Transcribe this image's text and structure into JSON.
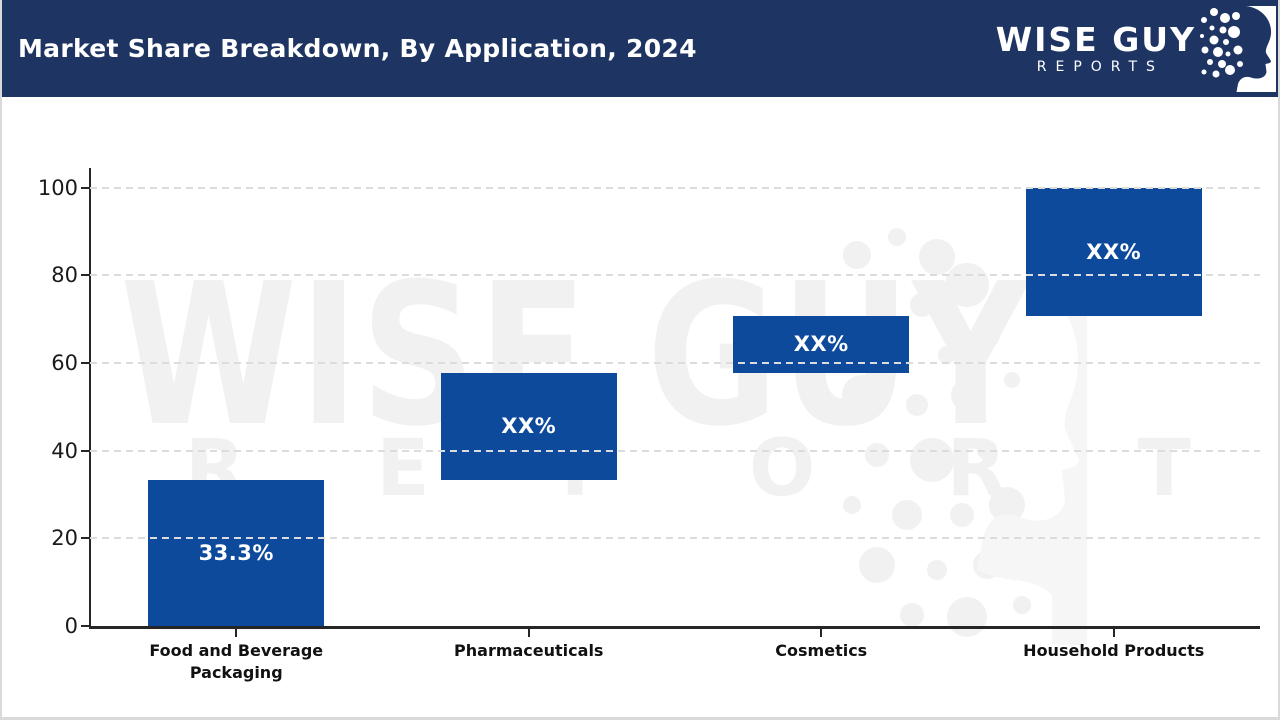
{
  "header": {
    "title": "Market Share Breakdown, By Application, 2024",
    "logo": {
      "line1": "WISE GUY",
      "line2": "REPORTS"
    }
  },
  "watermark": {
    "line1": "WISE GUY",
    "line2": "R E P O R T S"
  },
  "colors": {
    "header_bg": "#1e3563",
    "bar": "#0d4a9c",
    "grid": "#dcdcdc",
    "axis": "#262626",
    "title_text": "#ffffff",
    "bar_label_text": "#ffffff",
    "watermark": "#f1f1f1"
  },
  "chart_data": {
    "type": "bar",
    "subtype": "waterfall",
    "title": "Market Share Breakdown, By Application, 2024",
    "categories": [
      "Food and Beverage Packaging",
      "Pharmaceuticals",
      "Cosmetics",
      "Household Products"
    ],
    "segments": [
      {
        "start": 0,
        "end": 33.3,
        "label": "33.3%"
      },
      {
        "start": 33.3,
        "end": 57.7,
        "label": "XX%"
      },
      {
        "start": 57.7,
        "end": 70.7,
        "label": "XX%"
      },
      {
        "start": 70.7,
        "end": 100,
        "label": "XX%"
      }
    ],
    "xlabel": "",
    "ylabel": "",
    "ylim": [
      0,
      100
    ],
    "yticks": [
      0,
      20,
      40,
      60,
      80,
      100
    ],
    "grid": "dashed-horizontal",
    "legend": "none",
    "bar_color": "#0d4a9c"
  }
}
